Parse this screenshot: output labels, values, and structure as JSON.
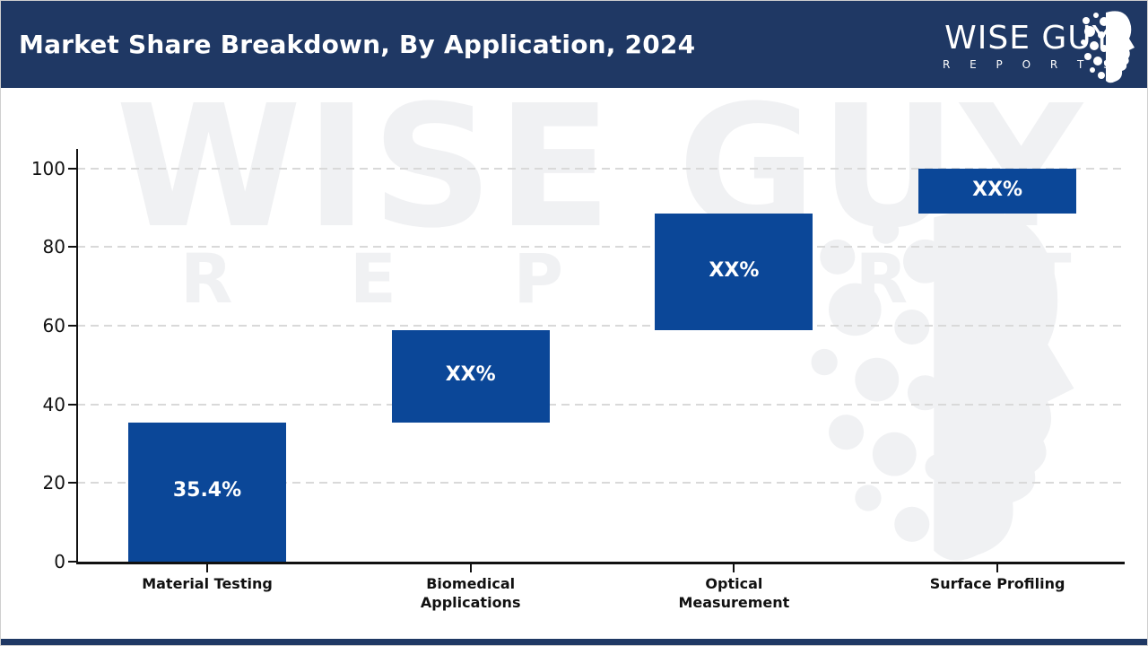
{
  "header": {
    "title": "Market Share Breakdown, By Application, 2024",
    "logo": {
      "line1": "WISE GUY",
      "line2": "R E P O R T S"
    }
  },
  "watermark": {
    "line1": "WISE GUY",
    "line2": "R E P O R T S"
  },
  "colors": {
    "header_bg": "#1f3864",
    "footer_bg": "#1f3864",
    "bar": "#0b4798",
    "bar_label": "#ffffff",
    "axis": "#111111",
    "gridline": "#d9d9d9",
    "watermark": "#f0f1f3",
    "page_bg": "#ffffff"
  },
  "chart_data": {
    "type": "bar",
    "subtype": "waterfall-floating-segments",
    "title": "Market Share Breakdown, By Application, 2024",
    "categories": [
      "Material Testing",
      "Biomedical Applications",
      "Optical Measurement",
      "Surface Profiling"
    ],
    "category_label_lines": [
      [
        "Material Testing"
      ],
      [
        "Biomedical",
        "Applications"
      ],
      [
        "Optical",
        "Measurement"
      ],
      [
        "Surface Profiling"
      ]
    ],
    "segments": [
      {
        "category": "Material Testing",
        "start": 0,
        "end": 35.4,
        "label": "35.4%"
      },
      {
        "category": "Biomedical Applications",
        "start": 35.4,
        "end": 58.9,
        "label": "XX%"
      },
      {
        "category": "Optical Measurement",
        "start": 58.9,
        "end": 88.5,
        "label": "XX%"
      },
      {
        "category": "Surface Profiling",
        "start": 88.5,
        "end": 100,
        "label": "XX%"
      }
    ],
    "xlabel": "",
    "ylabel": "",
    "ylim": [
      0,
      100
    ],
    "yticks": [
      0,
      20,
      40,
      60,
      80,
      100
    ],
    "grid": "dashed-horizontal",
    "legend": "none"
  }
}
